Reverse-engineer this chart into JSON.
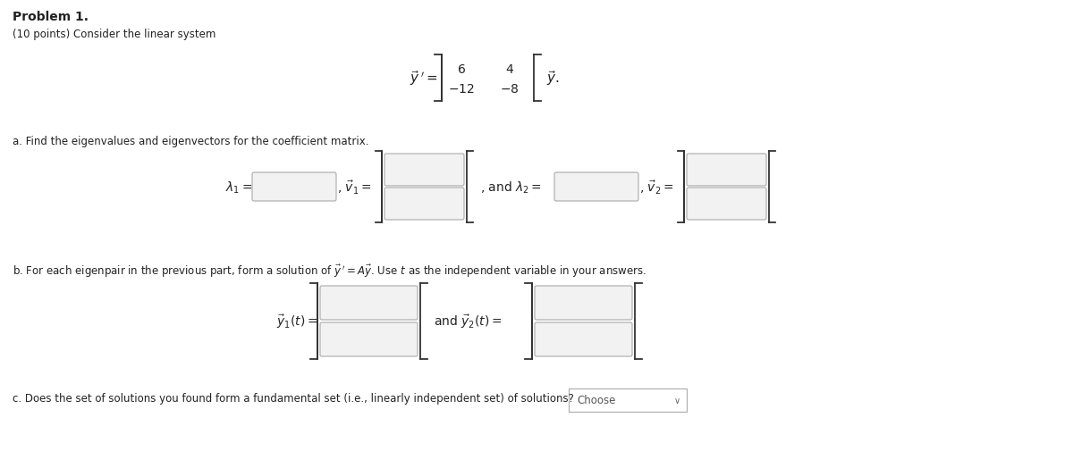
{
  "bg_color": "#ffffff",
  "title": "Problem 1.",
  "subtitle": "(10 points) Consider the linear system",
  "part_a_text": "a. Find the eigenvalues and eigenvectors for the coefficient matrix.",
  "part_b_text": "b. For each eigenpair in the previous part, form a solution of $\\vec{y}\\,' = A\\vec{y}$. Use $t$ as the independent variable in your answers.",
  "part_c_text": "c. Does the set of solutions you found form a fundamental set (i.e., linearly independent set) of solutions?",
  "font_size_title": 10,
  "font_size_body": 8.5,
  "font_size_math": 10,
  "box_fill": "#f2f2f2",
  "box_edge": "#aaaaaa"
}
